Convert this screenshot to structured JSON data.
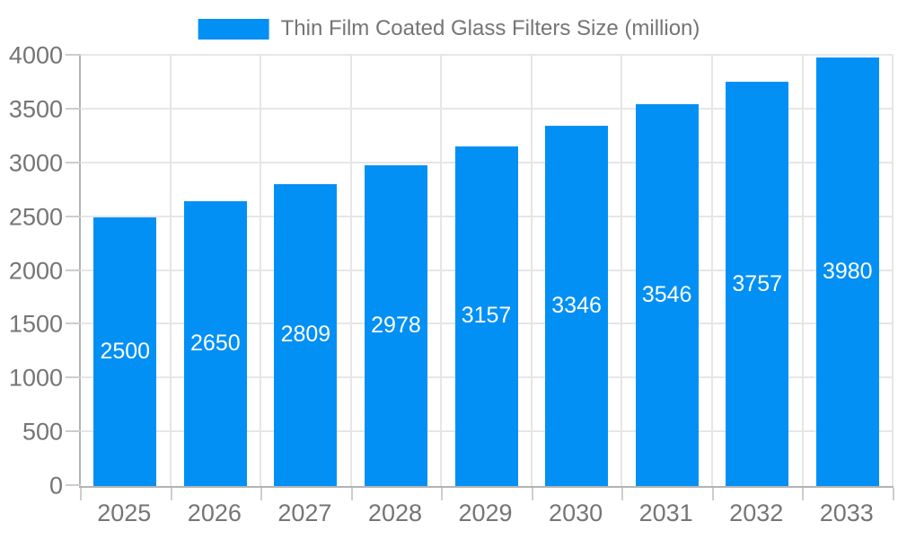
{
  "chart_data": {
    "type": "bar",
    "title": "Thin Film Coated Glass Filters Size (million)",
    "categories": [
      "2025",
      "2026",
      "2027",
      "2028",
      "2029",
      "2030",
      "2031",
      "2032",
      "2033"
    ],
    "values": [
      2500,
      2650,
      2809,
      2978,
      3157,
      3346,
      3546,
      3757,
      3980
    ],
    "xlabel": "",
    "ylabel": "",
    "ylim": [
      0,
      4000
    ],
    "yticks": [
      0,
      500,
      1000,
      1500,
      2000,
      2500,
      3000,
      3500,
      4000
    ],
    "grid": true,
    "legend_position": "top",
    "bar_labels_inside": true
  },
  "legend": {
    "label": "Thin Film Coated Glass Filters Size (million)"
  },
  "colors": {
    "bar": "#0290F5",
    "grid_line": "#E6E6E6",
    "axis_line": "#B3B3B3",
    "tick_line": "#CDCDCD",
    "tick_text": "#757575",
    "title_text": "#757575",
    "bar_label_text": "#FFFFFF",
    "background": "#FFFFFF"
  }
}
